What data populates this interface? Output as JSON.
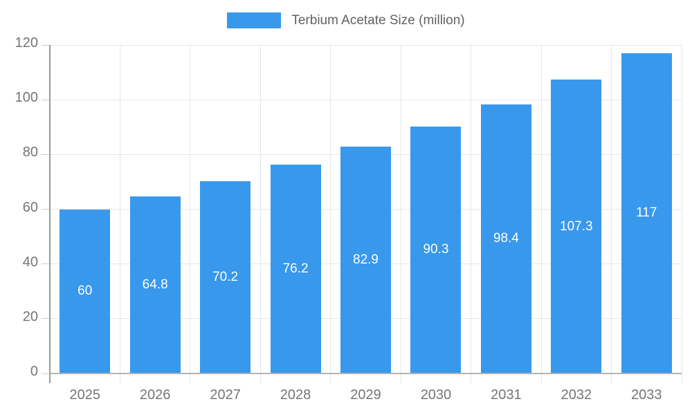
{
  "chart_data": {
    "type": "bar",
    "title": "",
    "legend": "Terbium Acetate Size (million)",
    "legend_position": "top",
    "categories": [
      "2025",
      "2026",
      "2027",
      "2028",
      "2029",
      "2030",
      "2031",
      "2032",
      "2033"
    ],
    "series": [
      {
        "name": "Terbium Acetate Size (million)",
        "values": [
          60,
          64.8,
          70.2,
          76.2,
          82.9,
          90.3,
          98.4,
          107.3,
          117
        ],
        "labels": [
          "60",
          "64.8",
          "70.2",
          "76.2",
          "82.9",
          "90.3",
          "98.4",
          "107.3",
          "117"
        ]
      }
    ],
    "xlabel": "",
    "ylabel": "",
    "ylim": [
      0,
      120
    ],
    "y_ticks": [
      0,
      20,
      40,
      60,
      80,
      100,
      120
    ],
    "y_tick_labels": [
      "0",
      "20",
      "40",
      "60",
      "80",
      "100",
      "120"
    ],
    "grid": true,
    "bar_label_position": "center-inside",
    "colors": {
      "bar": "#3898ec",
      "bar_label": "#ffffff",
      "grid_line": "#e6e6e6",
      "tick_mark": "#cccccc",
      "y_axis_line": "#999999",
      "x_axis_line": "#b3b3b3",
      "tick_label_text": "#757575",
      "legend_text": "#616161",
      "background": "#ffffff"
    }
  }
}
